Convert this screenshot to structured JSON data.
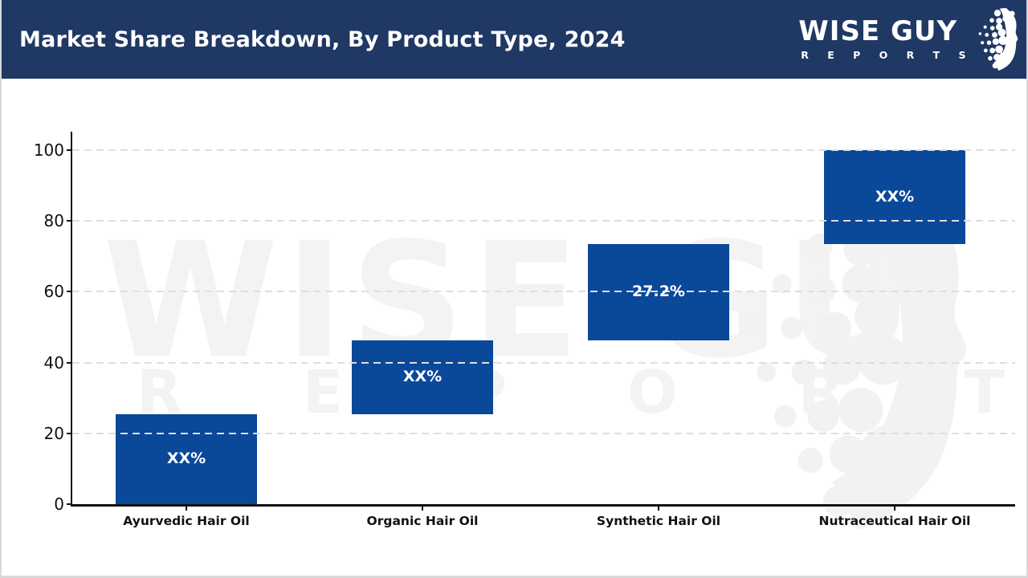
{
  "header": {
    "title": "Market Share Breakdown, By Product Type, 2024",
    "logo": {
      "line1": "WISE GUY",
      "line2": "R E P O R T S"
    }
  },
  "watermark": {
    "line1": "WISE GU",
    "line2": "R E P O R T S"
  },
  "chart_data": {
    "type": "bar",
    "subtype": "waterfall",
    "title": "Market Share Breakdown, By Product Type, 2024",
    "categories": [
      "Ayurvedic Hair Oil",
      "Organic Hair Oil",
      "Synthetic Hair Oil",
      "Nutraceutical Hair Oil"
    ],
    "segments": [
      {
        "category": "Ayurvedic Hair Oil",
        "start": 0,
        "end": 25.4,
        "value": 25.4,
        "label": "XX%"
      },
      {
        "category": "Organic Hair Oil",
        "start": 25.4,
        "end": 46.2,
        "value": 20.8,
        "label": "XX%"
      },
      {
        "category": "Synthetic Hair Oil",
        "start": 46.2,
        "end": 73.4,
        "value": 27.2,
        "label": "27.2%"
      },
      {
        "category": "Nutraceutical Hair Oil",
        "start": 73.4,
        "end": 100,
        "value": 26.6,
        "label": "XX%"
      }
    ],
    "yticks": [
      0,
      20,
      40,
      60,
      80,
      100
    ],
    "ylim": [
      0,
      100
    ],
    "xlabel": "",
    "ylabel": "",
    "grid": "horizontal-dashed",
    "legend": "none",
    "bar_color": "#0a4899",
    "bar_label_color": "#ffffff"
  },
  "colors": {
    "header_bg": "#1f3864",
    "bar": "#0a4899",
    "grid": "#dedede",
    "axis": "#111111",
    "watermark": "#f3f3f3",
    "page_border": "#d9d9d9"
  }
}
